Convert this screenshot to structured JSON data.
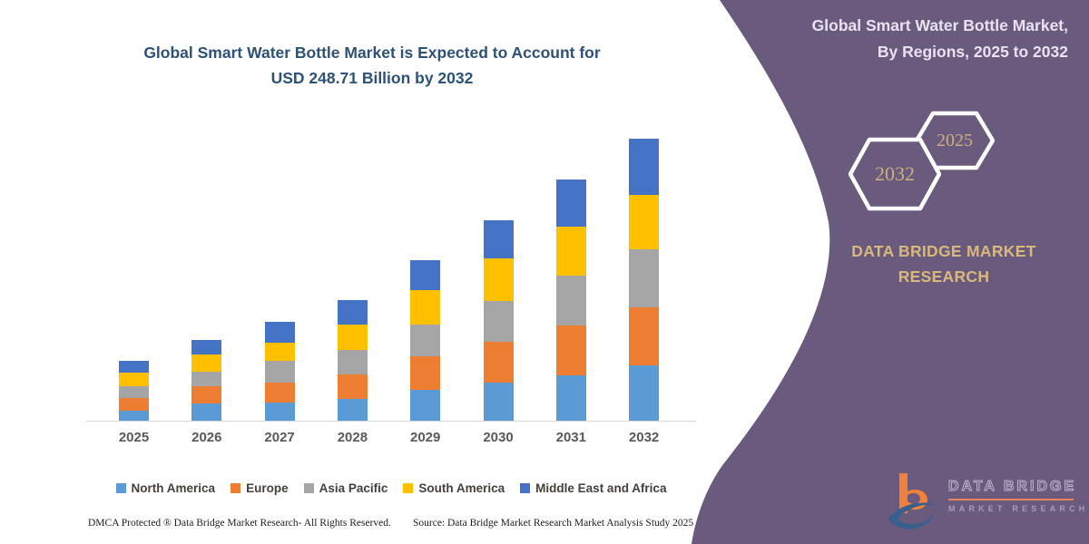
{
  "chart": {
    "title_line1": "Global Smart Water Bottle Market is Expected to Account for",
    "title_line2": "USD 248.71 Billion by 2032",
    "footer_left": "DMCA Protected ® Data Bridge Market Research-  All Rights Reserved.",
    "footer_source": "Source: Data Bridge Market Research  Market Analysis Study 2025"
  },
  "chart_data": {
    "type": "bar",
    "stacked": true,
    "title": "Global Smart Water Bottle Market is Expected to Account for USD 248.71 Billion by 2032",
    "unit": "USD Billion",
    "categories": [
      "2025",
      "2026",
      "2027",
      "2028",
      "2029",
      "2030",
      "2031",
      "2032"
    ],
    "series": [
      {
        "name": "North America",
        "color": "#5B9BD5",
        "values": [
          8.6,
          15.0,
          16.0,
          19.5,
          27.5,
          33.5,
          40.1,
          48.8
        ]
      },
      {
        "name": "Europe",
        "color": "#ED7D31",
        "values": [
          11.2,
          15.2,
          17.9,
          21.4,
          29.4,
          36.1,
          44.1,
          51.2
        ]
      },
      {
        "name": "Asia Pacific",
        "color": "#A5A5A5",
        "values": [
          10.7,
          13.4,
          18.7,
          21.9,
          28.1,
          36.1,
          44.1,
          51.2
        ]
      },
      {
        "name": "South America",
        "color": "#FFC000",
        "values": [
          12.0,
          14.7,
          16.3,
          22.2,
          30.2,
          37.5,
          42.8,
          48.2
        ]
      },
      {
        "name": "Middle East and Africa",
        "color": "#4472C4",
        "values": [
          10.2,
          12.8,
          18.7,
          21.4,
          26.7,
          33.5,
          41.5,
          49.3
        ]
      }
    ],
    "totals_estimated": [
      52.7,
      71.1,
      87.6,
      106.4,
      141.9,
      176.7,
      212.6,
      248.71
    ],
    "final_value_label": "248.71",
    "legend_position": "bottom",
    "y_axis_visible": false,
    "gridlines": false
  },
  "panel": {
    "bg_color": "#695a7e",
    "header_line1": "Global Smart Water Bottle Market,",
    "header_line2": "By Regions, 2025 to 2032",
    "hex_back_year": "2032",
    "hex_front_year": "2025",
    "brand_line1": "DATA BRIDGE MARKET",
    "brand_line2": "RESEARCH",
    "logo": {
      "name": "DATA BRIDGE",
      "subtitle": "MARKET RESEARCH"
    }
  }
}
